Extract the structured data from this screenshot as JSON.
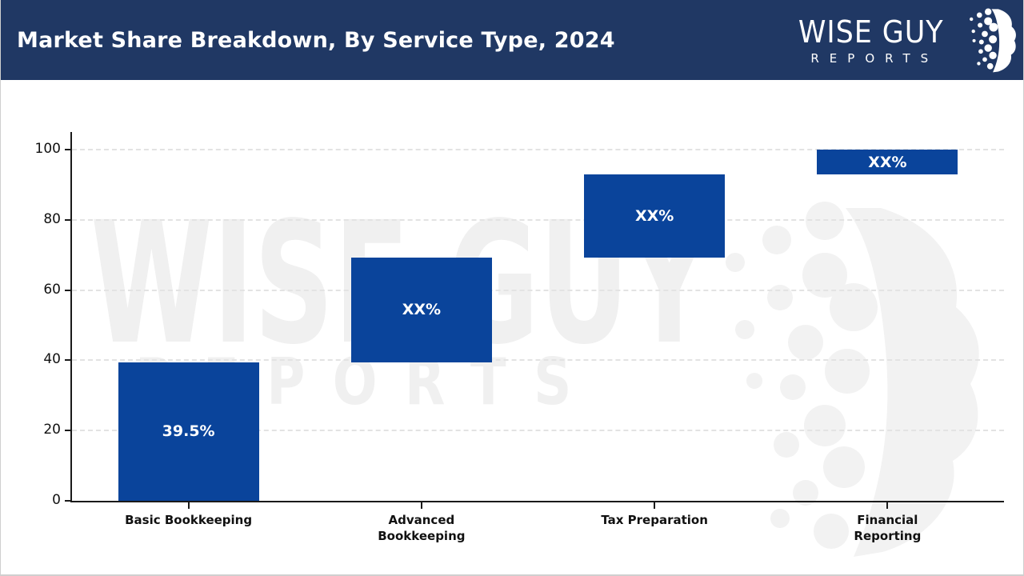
{
  "header": {
    "title": "Market Share Breakdown, By Service Type, 2024",
    "logo_line1": "WISE GUY",
    "logo_line2": "REPORTS",
    "bg_color": "#203864"
  },
  "watermark": {
    "line1": "WISE GUY",
    "line2": "REPORTS"
  },
  "chart_data": {
    "type": "bar",
    "subtype": "waterfall",
    "title": "Market Share Breakdown, By Service Type, 2024",
    "categories": [
      "Basic Bookkeeping",
      "Advanced Bookkeeping",
      "Tax Preparation",
      "Financial Reporting"
    ],
    "segments": [
      {
        "category": "Basic Bookkeeping",
        "start": 0,
        "end": 39.5,
        "label": "39.5%",
        "label_lines": [
          "Basic Bookkeeping"
        ]
      },
      {
        "category": "Advanced Bookkeeping",
        "start": 39.5,
        "end": 69.3,
        "label": "XX%",
        "label_lines": [
          "Advanced",
          "Bookkeeping"
        ]
      },
      {
        "category": "Tax Preparation",
        "start": 69.3,
        "end": 92.9,
        "label": "XX%",
        "label_lines": [
          "Tax Preparation"
        ]
      },
      {
        "category": "Financial Reporting",
        "start": 92.9,
        "end": 100,
        "label": "XX%",
        "label_lines": [
          "Financial",
          "Reporting"
        ]
      }
    ],
    "y_ticks": [
      0,
      20,
      40,
      60,
      80,
      100
    ],
    "ylim": [
      0,
      105
    ],
    "xlabel": "",
    "ylabel": "",
    "grid": "horizontal-dashed",
    "legend_position": "none",
    "colors": {
      "bar": "#0a449b",
      "bar_label": "#ffffff",
      "grid": "#e3e3e3",
      "axis": "#1a1a1a",
      "header_bg": "#203864",
      "watermark": "#f0f0f0"
    }
  }
}
